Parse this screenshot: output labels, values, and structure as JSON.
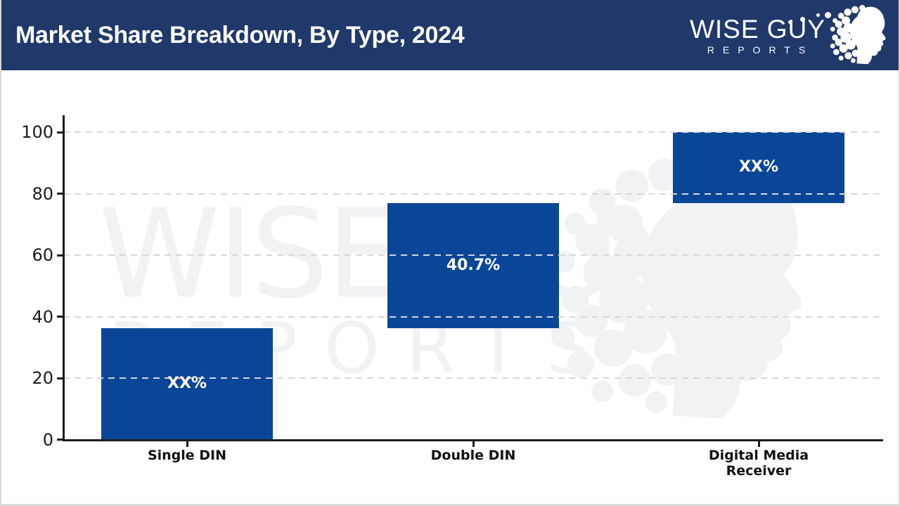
{
  "header": {
    "title": "Market Share Breakdown, By Type, 2024",
    "logo": {
      "line1": "WISE GUY",
      "line2": "REPORTS"
    }
  },
  "watermark": {
    "line1": "WISE GUY",
    "line2": "REPORTS"
  },
  "icons": {
    "logo_face": "dotted-face-profile",
    "watermark_face": "dotted-face-profile"
  },
  "colors": {
    "header_bg": "#20386a",
    "bar": "#0a4697",
    "bar_label": "#ffffff",
    "grid": "#d6d8d9",
    "axis": "#1c1c1c",
    "watermark": "#f1f2f4",
    "page_border": "#d9d9d9"
  },
  "chart_data": {
    "type": "bar",
    "subtype": "floating-waterfall",
    "title": "Market Share Breakdown, By Type, 2024",
    "xlabel": "",
    "ylabel": "",
    "categories": [
      "Single DIN",
      "Double DIN",
      "Digital Media Receiver"
    ],
    "bar_start": [
      0,
      36.3,
      77.0
    ],
    "bar_end": [
      36.3,
      77.0,
      100.0
    ],
    "bar_labels": [
      "XX%",
      "40.7%",
      "XX%"
    ],
    "ylim": [
      0,
      100
    ],
    "yticks": [
      0,
      20,
      40,
      60,
      80,
      100
    ],
    "grid": "horizontal-dashed",
    "legend": "none",
    "bar_color": "#0a4697",
    "label_color": "#ffffff"
  }
}
